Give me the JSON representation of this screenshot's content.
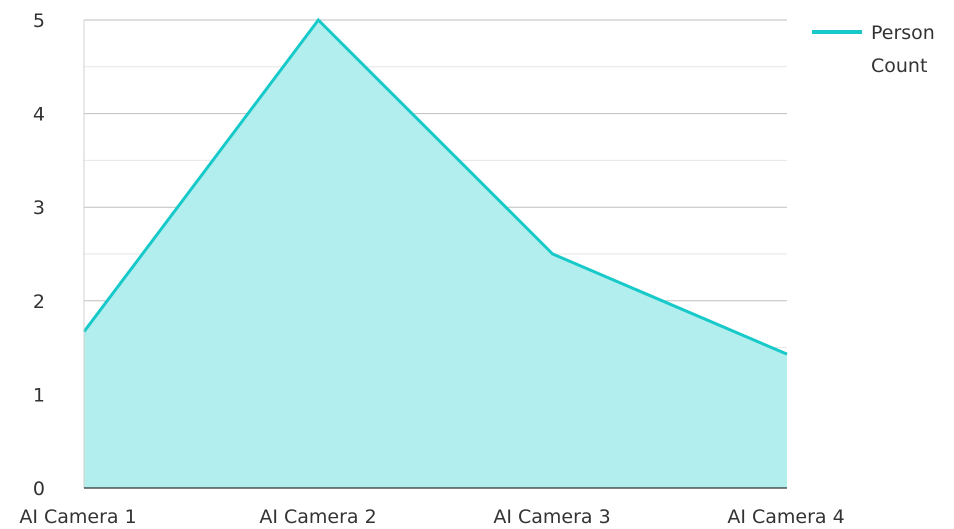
{
  "chart_data": {
    "type": "area",
    "categories": [
      "AI Camera 1",
      "AI Camera 2",
      "AI Camera 3",
      "AI Camera 4"
    ],
    "series": [
      {
        "name": "Person Count",
        "values": [
          1.67,
          5,
          2.5,
          1.43
        ],
        "color": "#17c9c9",
        "fill": "#b2eeee"
      }
    ],
    "y_ticks": [
      "0",
      "1",
      "2",
      "3",
      "4",
      "5"
    ],
    "ylim": [
      0,
      5
    ],
    "grid": true,
    "legend": {
      "position": "top-right",
      "lines": [
        "Person",
        "Count"
      ]
    }
  }
}
